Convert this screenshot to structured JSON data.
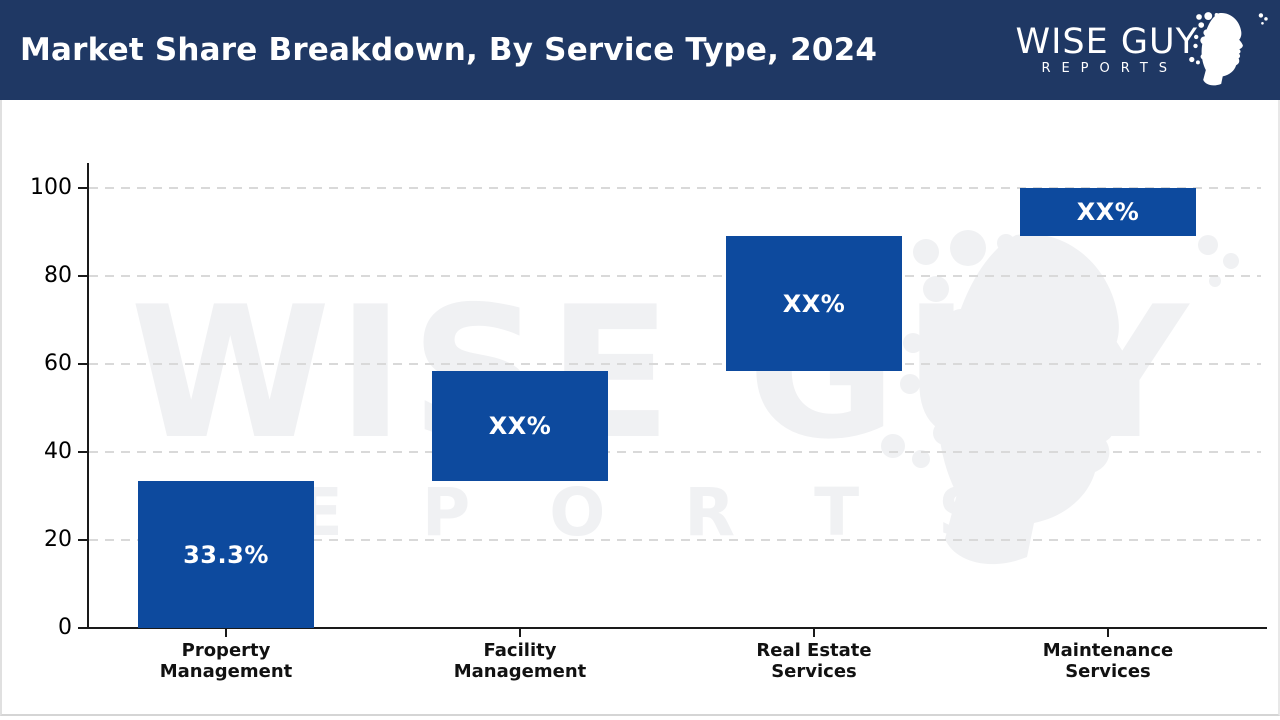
{
  "header": {
    "title": "Market Share Breakdown, By Service Type, 2024",
    "logo": {
      "line1": "WISE GUY",
      "line2": "REPORTS"
    }
  },
  "watermark": {
    "line1": "WISE GUY",
    "line2": "R E P O R T S"
  },
  "colors": {
    "header_bg": "#1f3864",
    "bar": "#0d4a9e",
    "bar_label": "#ffffff",
    "grid": "#d9d9d9",
    "watermark": "#f0f1f3"
  },
  "chart_data": {
    "type": "bar",
    "subtype": "floating-waterfall",
    "title": "Market Share Breakdown, By Service Type, 2024",
    "categories": [
      "Property Management",
      "Facility Management",
      "Real Estate Services",
      "Maintenance Services"
    ],
    "category_lines": [
      [
        "Property",
        "Management"
      ],
      [
        "Facility",
        "Management"
      ],
      [
        "Real Estate",
        "Services"
      ],
      [
        "Maintenance",
        "Services"
      ]
    ],
    "bars": [
      {
        "category": "Property Management",
        "start": 0,
        "end": 33.3,
        "label": "33.3%"
      },
      {
        "category": "Facility Management",
        "start": 33.3,
        "end": 58.3,
        "label": "XX%"
      },
      {
        "category": "Real Estate Services",
        "start": 58.3,
        "end": 88.9,
        "label": "XX%"
      },
      {
        "category": "Maintenance Services",
        "start": 88.9,
        "end": 100,
        "label": "XX%"
      }
    ],
    "xlabel": "",
    "ylabel": "",
    "ylim": [
      0,
      100
    ],
    "yticks": [
      0,
      20,
      40,
      60,
      80,
      100
    ],
    "grid": {
      "axis": "y",
      "style": "dashed"
    },
    "legend": null
  }
}
